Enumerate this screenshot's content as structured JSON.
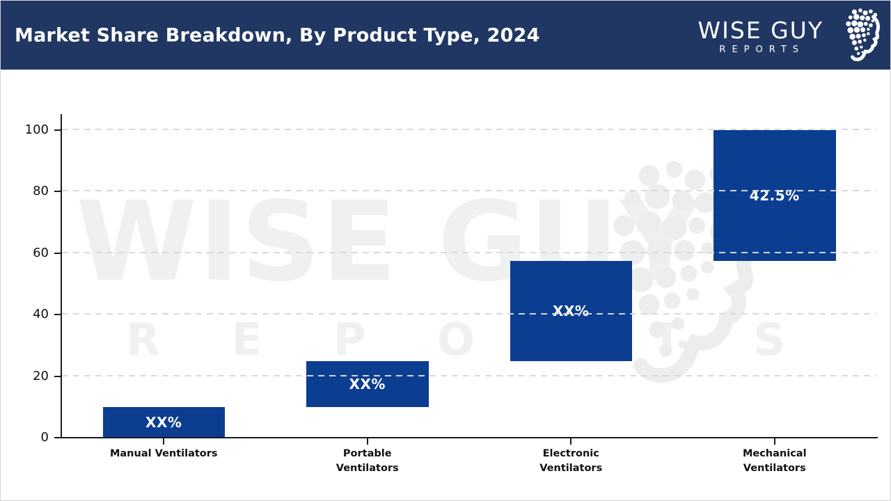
{
  "header": {
    "title": "Market Share Breakdown, By Product Type, 2024",
    "logo": {
      "line1": "WISE GUY",
      "line2": "REPORTS"
    }
  },
  "watermark": {
    "line1": "WISE GUY",
    "line2": "R E P O R T S"
  },
  "icons": {
    "logo_head": "dotted-head-profile-icon",
    "watermark_face": "dotted-head-profile-icon"
  },
  "colors": {
    "header_bg": "#213763",
    "bar": "#0b3d91",
    "grid": "#d9d9d9",
    "axis": "#1a1a1a",
    "watermark": "#f0f0f0",
    "bar_value_text": "#ffffff"
  },
  "chart_data": {
    "type": "bar",
    "subtype": "floating-waterfall-columns",
    "title": "Market Share Breakdown, By Product Type, 2024",
    "categories": [
      "Manual Ventilators",
      "Portable\nVentilators",
      "Electronic\nVentilators",
      "Mechanical\nVentilators"
    ],
    "series": [
      {
        "name": "Market share (%)",
        "segments": [
          {
            "start": 0,
            "end": 10,
            "value_label": "XX%"
          },
          {
            "start": 10,
            "end": 25,
            "value_label": "XX%"
          },
          {
            "start": 25,
            "end": 57.5,
            "value_label": "XX%"
          },
          {
            "start": 57.5,
            "end": 100,
            "value_label": "42.5%"
          }
        ]
      }
    ],
    "xlabel": "",
    "ylabel": "",
    "ylim": [
      0,
      100
    ],
    "yticks": [
      0,
      20,
      40,
      60,
      80,
      100
    ],
    "grid": "horizontal-dashed",
    "legend": "none"
  }
}
